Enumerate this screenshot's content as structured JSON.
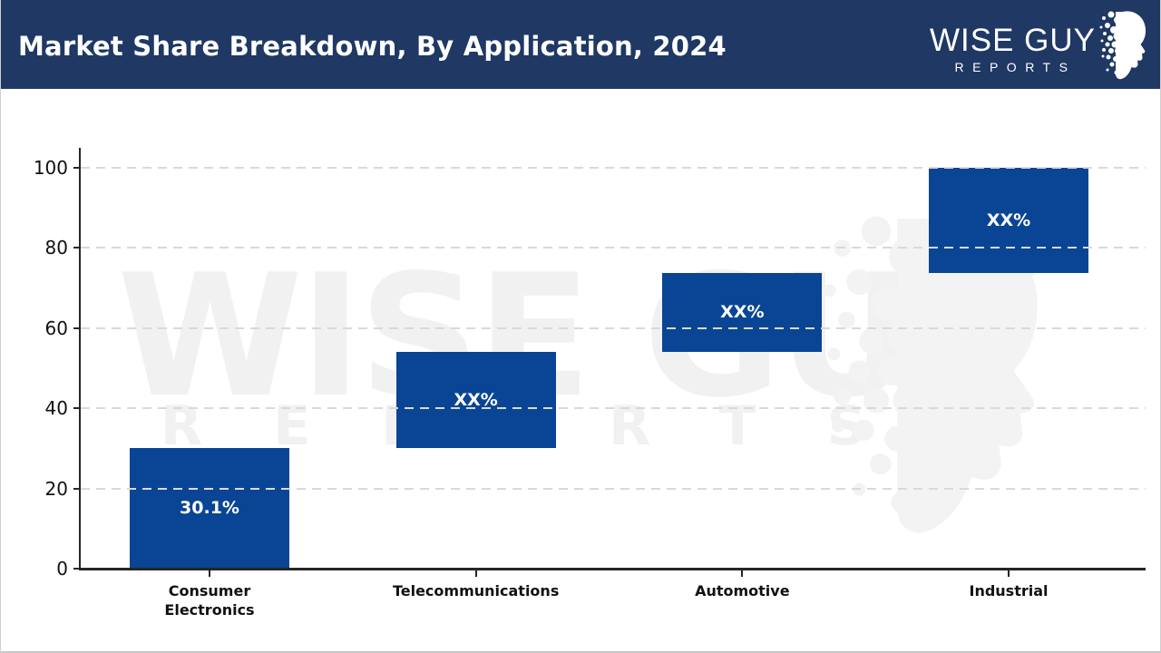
{
  "header": {
    "bg_color": "#1f3864",
    "title": "Market Share Breakdown, By Application, 2024",
    "logo": {
      "line1": "WISE GUY",
      "line2": "REPORTS"
    }
  },
  "watermark": {
    "line1": "WISE GUY",
    "line2": "REPORTS"
  },
  "chart_data": {
    "type": "bar",
    "subtype": "waterfall",
    "title": "Market Share Breakdown, By Application, 2024",
    "categories": [
      "Consumer Electronics",
      "Telecommunications",
      "Automotive",
      "Industrial"
    ],
    "tick_labels": [
      "Consumer\nElectronics",
      "Telecommunications",
      "Automotive",
      "Industrial"
    ],
    "segments": [
      {
        "category": "Consumer Electronics",
        "start": 0,
        "end": 30.1,
        "label": "30.1%"
      },
      {
        "category": "Telecommunications",
        "start": 30.1,
        "end": 54.1,
        "label": "XX%"
      },
      {
        "category": "Automotive",
        "start": 54.1,
        "end": 73.8,
        "label": "XX%"
      },
      {
        "category": "Industrial",
        "start": 73.8,
        "end": 100,
        "label": "XX%"
      }
    ],
    "xlabel": "",
    "ylabel": "",
    "yticks": [
      0,
      20,
      40,
      60,
      80,
      100
    ],
    "ylim": [
      0,
      105
    ],
    "grid": {
      "axis": "y",
      "style": "dashed",
      "color": "#d9d9d9",
      "drawn_over_bars": true
    },
    "legend": null,
    "colors": {
      "bar": "#0a4595",
      "bar_label_text": "#ffffff",
      "axis": "#262626",
      "tick_text": "#111111",
      "header_bg": "#1f3864",
      "watermark": "#f1f1f1"
    }
  }
}
